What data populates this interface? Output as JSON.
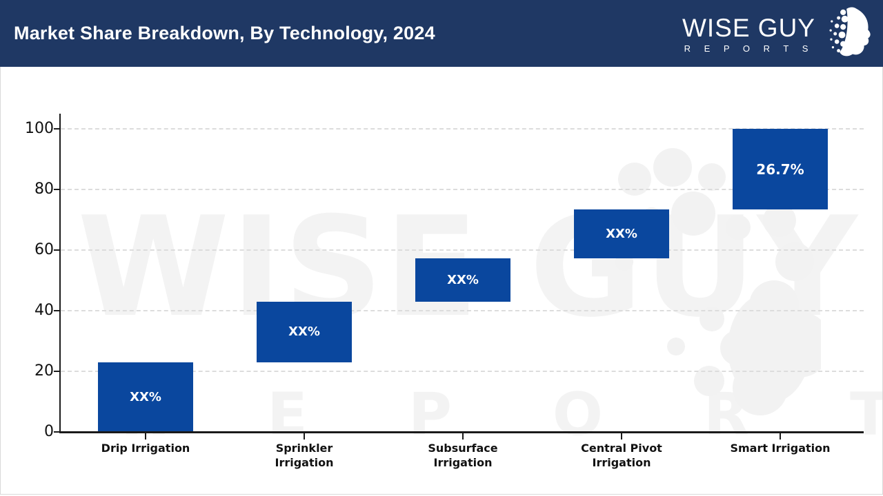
{
  "header": {
    "title": "Market Share Breakdown, By Technology, 2024",
    "bg_color": "#1F3864",
    "logo": {
      "line1": "WISE GUY",
      "line2": "R E P O R T S"
    }
  },
  "watermark": {
    "line1": "WISE GUY",
    "line2": "R E P O R T S"
  },
  "chart_data": {
    "type": "bar",
    "subtype": "waterfall",
    "title": "Market Share Breakdown, By Technology, 2024",
    "categories": [
      "Drip Irrigation",
      "Sprinkler Irrigation",
      "Subsurface Irrigation",
      "Central Pivot Irrigation",
      "Smart Irrigation"
    ],
    "category_display": [
      "Drip Irrigation",
      "Sprinkler\nIrrigation",
      "Subsurface\nIrrigation",
      "Central Pivot\nIrrigation",
      "Smart Irrigation"
    ],
    "segments": [
      {
        "category": "Drip Irrigation",
        "start": 0,
        "end": 23,
        "label": "XX%"
      },
      {
        "category": "Sprinkler Irrigation",
        "start": 23,
        "end": 43,
        "label": "XX%"
      },
      {
        "category": "Subsurface Irrigation",
        "start": 43,
        "end": 57.3,
        "label": "XX%"
      },
      {
        "category": "Central Pivot Irrigation",
        "start": 57.3,
        "end": 73.3,
        "label": "XX%"
      },
      {
        "category": "Smart Irrigation",
        "start": 73.3,
        "end": 100,
        "label": "26.7%"
      }
    ],
    "ylim": [
      0,
      100
    ],
    "yticks": [
      0,
      20,
      40,
      60,
      80,
      100
    ],
    "grid": "horizontal-dashed",
    "legend": "none",
    "bar_color": "#0A479E",
    "bar_label_color": "#FFFFFF",
    "axis_color": "#1a1a1a",
    "gridline_color": "#dcdcdc"
  }
}
